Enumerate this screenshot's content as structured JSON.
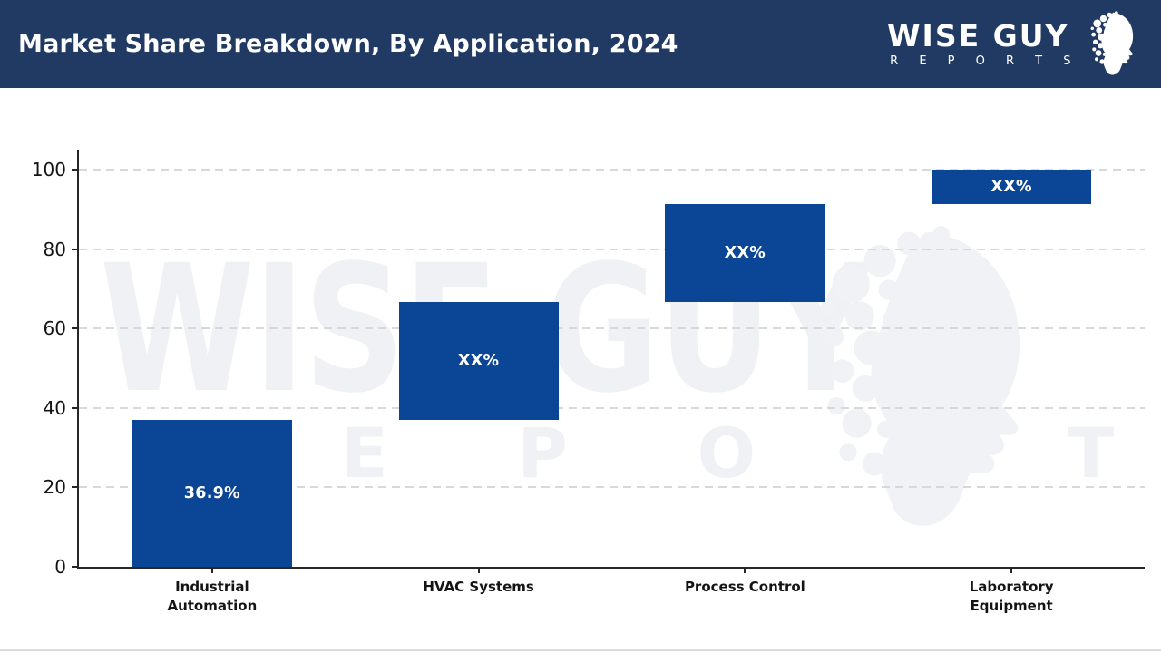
{
  "header": {
    "title": "Market Share Breakdown, By Application, 2024",
    "bg_color": "#213a63",
    "logo": {
      "line1": "WISE GUY",
      "line2": "R E P O R T S"
    }
  },
  "watermark": {
    "line1": "WISE GUY",
    "line2": "R E P O R T S"
  },
  "chart_data": {
    "type": "bar",
    "subtype": "waterfall",
    "title": "Market Share Breakdown, By Application, 2024",
    "xlabel": "",
    "ylabel": "",
    "categories": [
      "Industrial Automation",
      "HVAC Systems",
      "Process Control",
      "Laboratory Equipment"
    ],
    "segments": [
      {
        "category": "Industrial Automation",
        "start": 0,
        "end": 36.9,
        "value": 36.9,
        "label": "36.9%"
      },
      {
        "category": "HVAC Systems",
        "start": 36.9,
        "end": 66.6,
        "value": 29.7,
        "label": "XX%"
      },
      {
        "category": "Process Control",
        "start": 66.6,
        "end": 91.2,
        "value": 24.6,
        "label": "XX%"
      },
      {
        "category": "Laboratory Equipment",
        "start": 91.2,
        "end": 100,
        "value": 8.8,
        "label": "XX%"
      }
    ],
    "yticks": [
      0,
      20,
      40,
      60,
      80,
      100
    ],
    "ylim": [
      0,
      105
    ],
    "grid": "horizontal-dashed",
    "legend": "none",
    "bar_color": "#0b4596",
    "bar_label_color": "#ffffff",
    "gridline_color": "#d8d8d8",
    "axis_color": "#262626"
  }
}
